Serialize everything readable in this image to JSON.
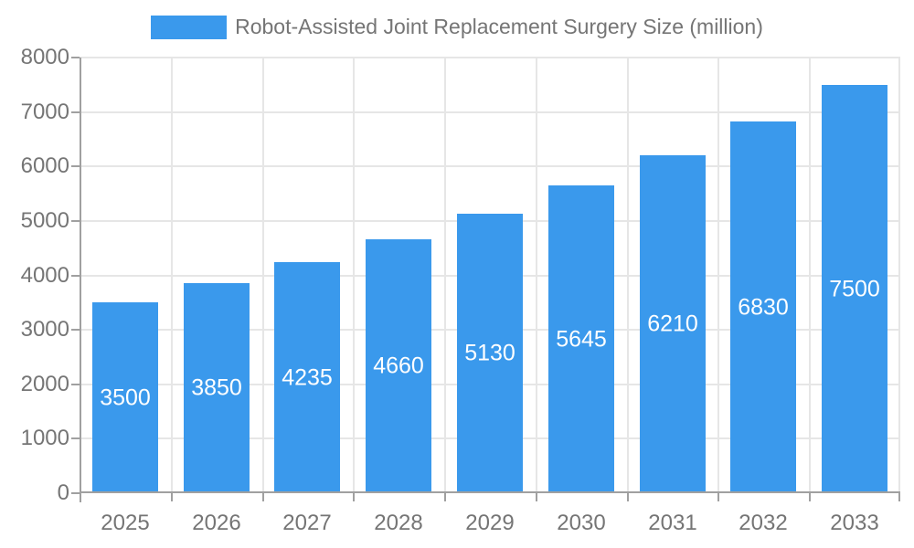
{
  "legend": {
    "label": "Robot-Assisted Joint Replacement Surgery Size (million)"
  },
  "chart_data": {
    "type": "bar",
    "title": "Robot-Assisted Joint Replacement Surgery Size (million)",
    "categories": [
      "2025",
      "2026",
      "2027",
      "2028",
      "2029",
      "2030",
      "2031",
      "2032",
      "2033"
    ],
    "values": [
      3500,
      3850,
      4235,
      4660,
      5130,
      5645,
      6210,
      6830,
      7500
    ],
    "series": [
      {
        "name": "Robot-Assisted Joint Replacement Surgery Size (million)",
        "values": [
          3500,
          3850,
          4235,
          4660,
          5130,
          5645,
          6210,
          6830,
          7500
        ]
      }
    ],
    "xlabel": "",
    "ylabel": "",
    "ylim": [
      0,
      8000
    ],
    "ytick_step": 1000,
    "ytick_labels": [
      "0",
      "1000",
      "2000",
      "3000",
      "4000",
      "5000",
      "6000",
      "7000",
      "8000"
    ],
    "grid": true,
    "legend_position": "top",
    "value_label_position": "inside-middle",
    "colors": {
      "bar": "#3A99EC",
      "grid": "#E6E6E6",
      "axis": "#A0A0A0",
      "tick_text": "#757575",
      "value_label": "#FFFFFF",
      "background": "#FFFFFF"
    }
  }
}
